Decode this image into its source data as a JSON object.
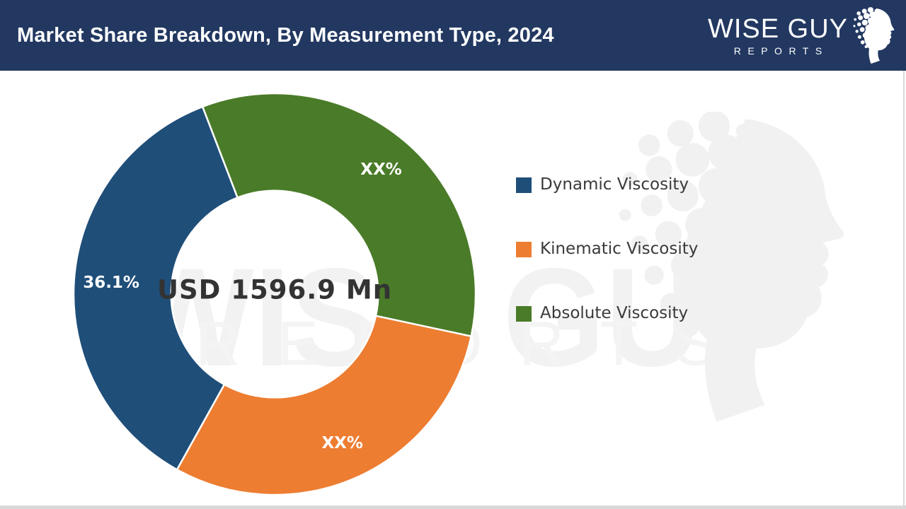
{
  "header": {
    "title": "Market Share Breakdown, By Measurement Type, 2024",
    "bg_color": "#223861",
    "logo": {
      "name": "WISE GUY",
      "tagline": "REPORTS"
    }
  },
  "chart_data": {
    "type": "pie",
    "variant": "donut",
    "title": "Market Share Breakdown, By Measurement Type, 2024",
    "center_label": "USD 1596.9 Mn",
    "start_angle_deg": 111,
    "direction": "counterclockwise",
    "inner_radius_ratio": 0.515,
    "legend_position": "right",
    "grid": false,
    "segments": [
      {
        "label": "Dynamic Viscosity",
        "display_value": "36.1%",
        "value_pct": 36.1,
        "color": "#1F4E79"
      },
      {
        "label": "Kinematic Viscosity",
        "display_value": "XX%",
        "value_pct": 29.7,
        "color": "#ED7D31"
      },
      {
        "label": "Absolute Viscosity",
        "display_value": "XX%",
        "value_pct": 34.2,
        "color": "#4A7B28"
      }
    ]
  },
  "watermark": {
    "name": "WISE GUY",
    "tagline": "REPORTS"
  },
  "frame": {
    "divider_color": "#D9D9D9"
  }
}
